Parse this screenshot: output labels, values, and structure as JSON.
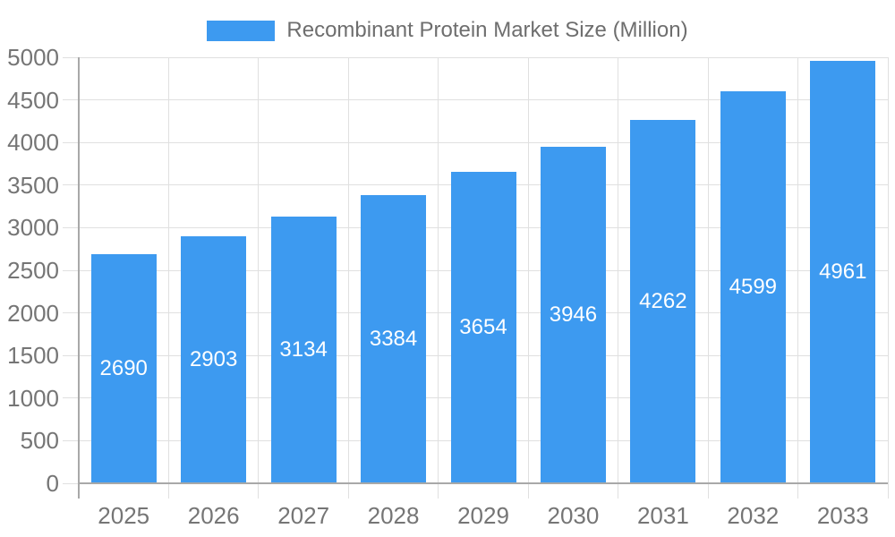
{
  "legend": {
    "label": "Recombinant Protein Market Size (Million)"
  },
  "chart_data": {
    "type": "bar",
    "title": "Recombinant Protein Market Size (Million)",
    "categories": [
      "2025",
      "2026",
      "2027",
      "2028",
      "2029",
      "2030",
      "2031",
      "2032",
      "2033"
    ],
    "values": [
      2690,
      2903,
      3134,
      3384,
      3654,
      3946,
      4262,
      4599,
      4961
    ],
    "series": [
      {
        "name": "Recombinant Protein Market Size (Million)",
        "values": [
          2690,
          2903,
          3134,
          3384,
          3654,
          3946,
          4262,
          4599,
          4961
        ]
      }
    ],
    "xlabel": "",
    "ylabel": "",
    "ylim": [
      0,
      5000
    ],
    "ytick_interval": 500,
    "yticks": [
      0,
      500,
      1000,
      1500,
      2000,
      2500,
      3000,
      3500,
      4000,
      4500,
      5000
    ],
    "grid": true,
    "vertical_grid": true,
    "legend_position": "top-center",
    "bar_value_labels": "centered-inside-white",
    "colors": {
      "bar": "#3D9AF0",
      "bar_label": "#FFFFFF",
      "grid_line": "#E0E0E0",
      "axis_line": "#A8A8A8",
      "axis_text": "#757575",
      "legend_text": "#6E6E6E",
      "background": "#FFFFFF"
    }
  }
}
